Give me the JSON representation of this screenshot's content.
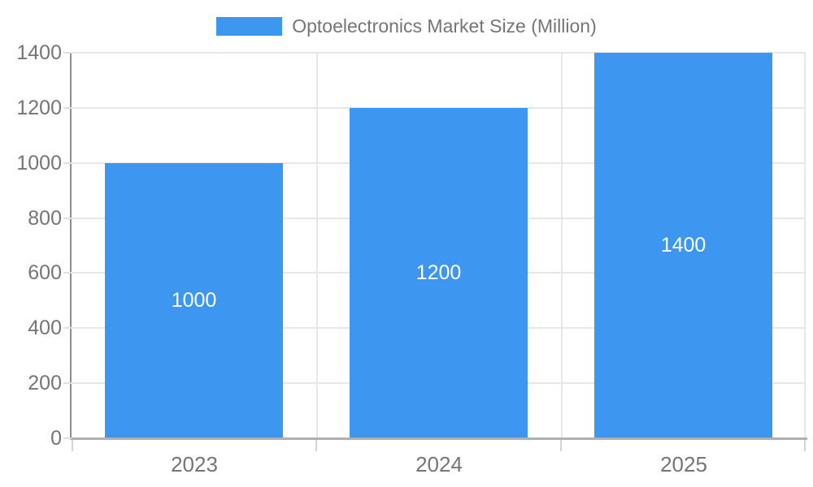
{
  "legend": {
    "label": "Optoelectronics Market Size (Million)"
  },
  "chart_data": {
    "type": "bar",
    "title": "Optoelectronics Market Size (Million)",
    "categories": [
      "2023",
      "2024",
      "2025"
    ],
    "series": [
      {
        "name": "Optoelectronics Market Size (Million)",
        "values": [
          1000,
          1200,
          1400
        ]
      }
    ],
    "values": [
      1000,
      1200,
      1400
    ],
    "bar_value_labels": [
      "1000",
      "1200",
      "1400"
    ],
    "xlabel": "",
    "ylabel": "",
    "ylim": [
      0,
      1400
    ],
    "ytick_step": 200,
    "ytick_labels": [
      "0",
      "200",
      "400",
      "600",
      "800",
      "1000",
      "1200",
      "1400"
    ],
    "grid": true,
    "legend_position": "top-center",
    "colors": {
      "bar": "#3D96F0",
      "bar_label": "#FFFFFF",
      "axis_text": "#757575",
      "legend_text": "#757575",
      "gridline": "#E7E7E7",
      "y_axis_line": "#8E8E8E",
      "x_axis_line": "#B0B0B0"
    }
  }
}
